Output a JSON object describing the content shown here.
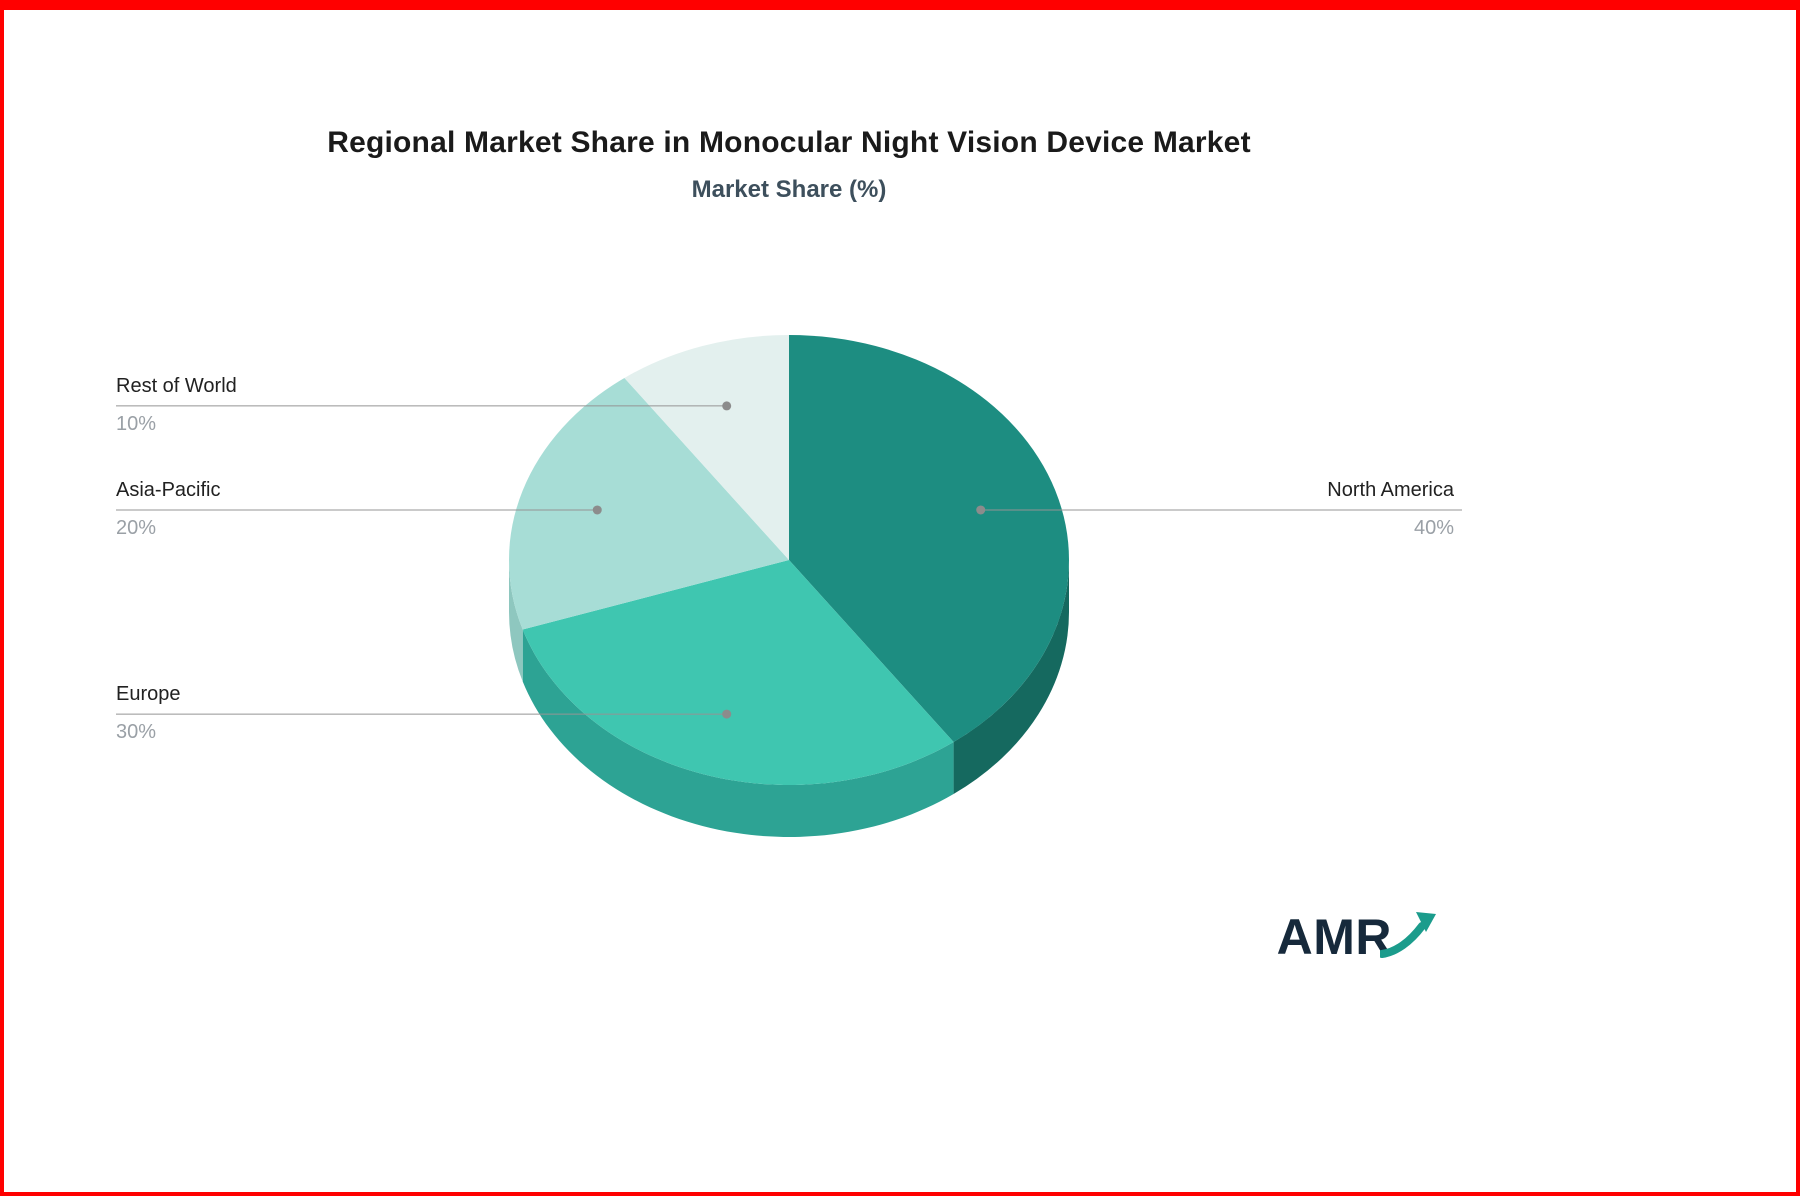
{
  "page": {
    "title": "Regional Market Share in Monocular Night Vision Device Market",
    "subtitle": "Market Share (%)"
  },
  "logo": {
    "text": "AMR"
  },
  "chart_data": {
    "type": "pie",
    "title": "Regional Market Share in Monocular Night Vision Device Market",
    "subtitle": "Market Share (%)",
    "unit": "%",
    "direction": "clockwise",
    "start_angle_deg": 0,
    "effect": "3d",
    "legend_position": "none",
    "slices": [
      {
        "label": "North America",
        "value": 40,
        "pct_label": "40%",
        "color": "#1d8d81",
        "side_color": "#15695f",
        "label_side": "right"
      },
      {
        "label": "Europe",
        "value": 30,
        "pct_label": "30%",
        "color": "#3fc6b0",
        "side_color": "#2da394",
        "label_side": "left"
      },
      {
        "label": "Asia-Pacific",
        "value": 20,
        "pct_label": "20%",
        "color": "#a7ddd6",
        "side_color": "#8ec7bf",
        "label_side": "left"
      },
      {
        "label": "Rest of World",
        "value": 10,
        "pct_label": "10%",
        "color": "#e3f0ee",
        "side_color": "#c6dcd8",
        "label_side": "left"
      }
    ],
    "leader_line_color": "#949494",
    "leader_dot_color": "#8c8c8c",
    "label_color": "#212121",
    "pct_color": "#9aa0a6",
    "accent_color": "#1b9c8c"
  }
}
